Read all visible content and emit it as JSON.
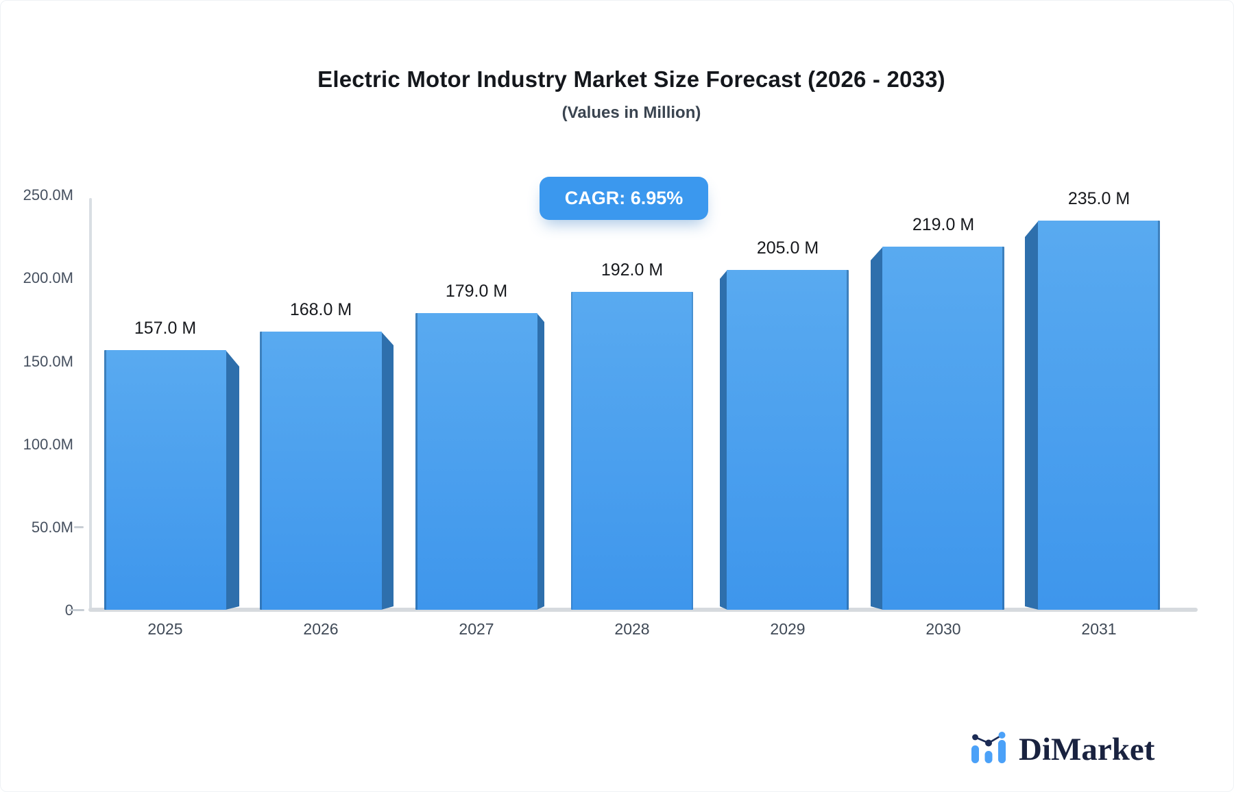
{
  "chart_data": {
    "type": "bar",
    "title": "Electric Motor Industry Market Size Forecast (2026 - 2033)",
    "subtitle": "(Values in Million)",
    "badge_label": "CAGR: 6.95%",
    "categories": [
      "2025",
      "2026",
      "2027",
      "2028",
      "2029",
      "2030",
      "2031"
    ],
    "values": [
      157,
      168,
      179,
      192,
      205,
      219,
      235
    ],
    "value_labels": [
      "157.0 M",
      "168.0 M",
      "179.0 M",
      "192.0 M",
      "205.0 M",
      "219.0 M",
      "235.0 M"
    ],
    "unit": "Million",
    "y_ticks": [
      "250.0M",
      "200.0M",
      "150.0M",
      "100.0M",
      "50.0M",
      "0"
    ],
    "ylim": [
      0,
      250
    ],
    "grid": false,
    "legend": false,
    "bar_style": "3d-perspective-center-vanishing"
  },
  "logo": {
    "text": "DiMarket",
    "icon": "mini-bar-line-chart-icon"
  },
  "colors": {
    "accent": "#3B98EE",
    "bar_face_top": "#59AAF0",
    "bar_face_bottom": "#3E96EC",
    "bar_side": "#2E6FAC",
    "bar_edge": "rgba(36,88,138,0.5)",
    "axis_line": "#D9DEE3",
    "axis_text": "#46505F",
    "title_text": "#14171C",
    "logo_navy": "#1B2B55",
    "logo_blue": "#4BA1F8"
  }
}
